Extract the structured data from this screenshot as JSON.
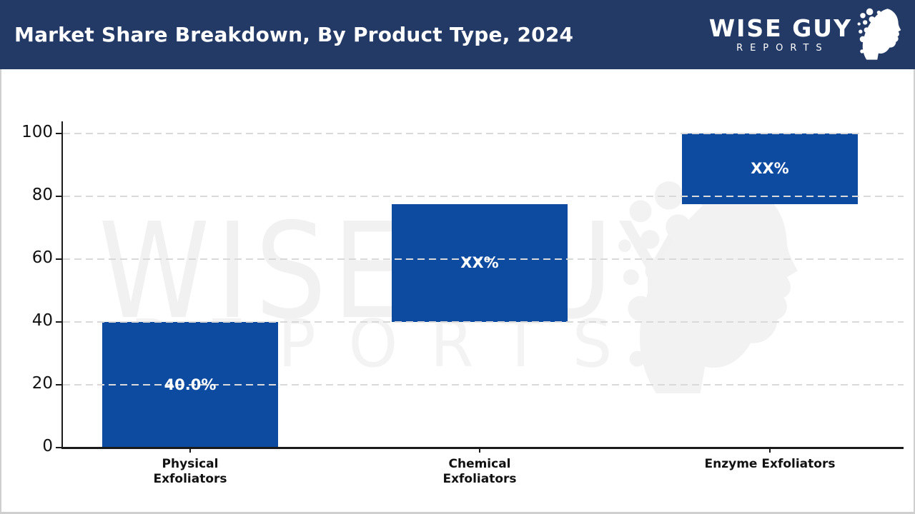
{
  "header": {
    "title": "Market Share Breakdown, By Product Type, 2024",
    "bg_color": "#233a66",
    "logo": {
      "line1": "WISE GUY",
      "line2": "REPORTS"
    }
  },
  "watermark": {
    "wise": "WISE",
    "guy": "GUY",
    "reports": "REPORTS"
  },
  "chart_data": {
    "type": "bar",
    "subtype": "waterfall",
    "title": "Market Share Breakdown, By Product Type, 2024",
    "categories": [
      "Physical Exfoliators",
      "Chemical Exfoliators",
      "Enzyme Exfoliators"
    ],
    "bars": [
      {
        "category": "Physical Exfoliators",
        "label_lines": [
          "Physical",
          "Exfoliators"
        ],
        "base": 0,
        "value": 40.0,
        "label": "40.0%"
      },
      {
        "category": "Chemical Exfoliators",
        "label_lines": [
          "Chemical",
          "Exfoliators"
        ],
        "base": 40.0,
        "value": 37.5,
        "label": "XX%"
      },
      {
        "category": "Enzyme Exfoliators",
        "label_lines": [
          "Enzyme Exfoliators"
        ],
        "base": 77.5,
        "value": 22.5,
        "label": "XX%"
      }
    ],
    "yticks": [
      0,
      20,
      40,
      60,
      80,
      100
    ],
    "ylim": [
      0,
      103.8
    ],
    "grid": true,
    "legend": false,
    "bar_color": "#0d4ba1",
    "grid_color": "#d9d9d9",
    "axis_color": "#1a1a1a",
    "bar_label_color": "#ffffff"
  }
}
